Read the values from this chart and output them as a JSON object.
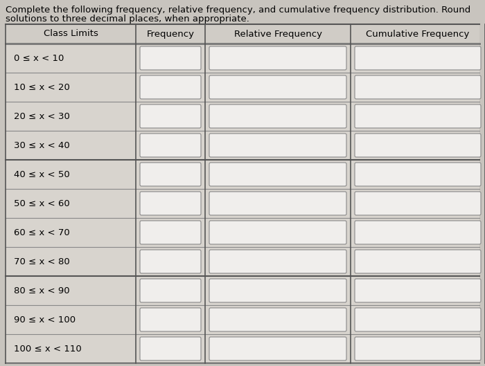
{
  "title_line1": "Complete the following frequency, relative frequency, and cumulative frequency distribution. Round",
  "title_line2": "solutions to three decimal places, when appropriate.",
  "col_headers": [
    "Class Limits",
    "Frequency",
    "Relative Frequency",
    "Cumulative Frequency"
  ],
  "rows": [
    "0 ≤ x < 10",
    "10 ≤ x < 20",
    "20 ≤ x < 30",
    "30 ≤ x < 40",
    "40 ≤ x < 50",
    "50 ≤ x < 60",
    "60 ≤ x < 70",
    "70 ≤ x < 80",
    "80 ≤ x < 90",
    "90 ≤ x < 100",
    "100 ≤ x < 110"
  ],
  "bg_color": "#c8c4be",
  "table_bg": "#d4d0ca",
  "header_bg": "#d0ccc6",
  "cell_fill": "#d8d4ce",
  "input_box_fill": "#f0eeec",
  "border_dark": "#555555",
  "border_light": "#888888",
  "title_fontsize": 9.5,
  "header_fontsize": 9.5,
  "row_fontsize": 9.5,
  "fig_width": 7.0,
  "fig_height": 5.29
}
